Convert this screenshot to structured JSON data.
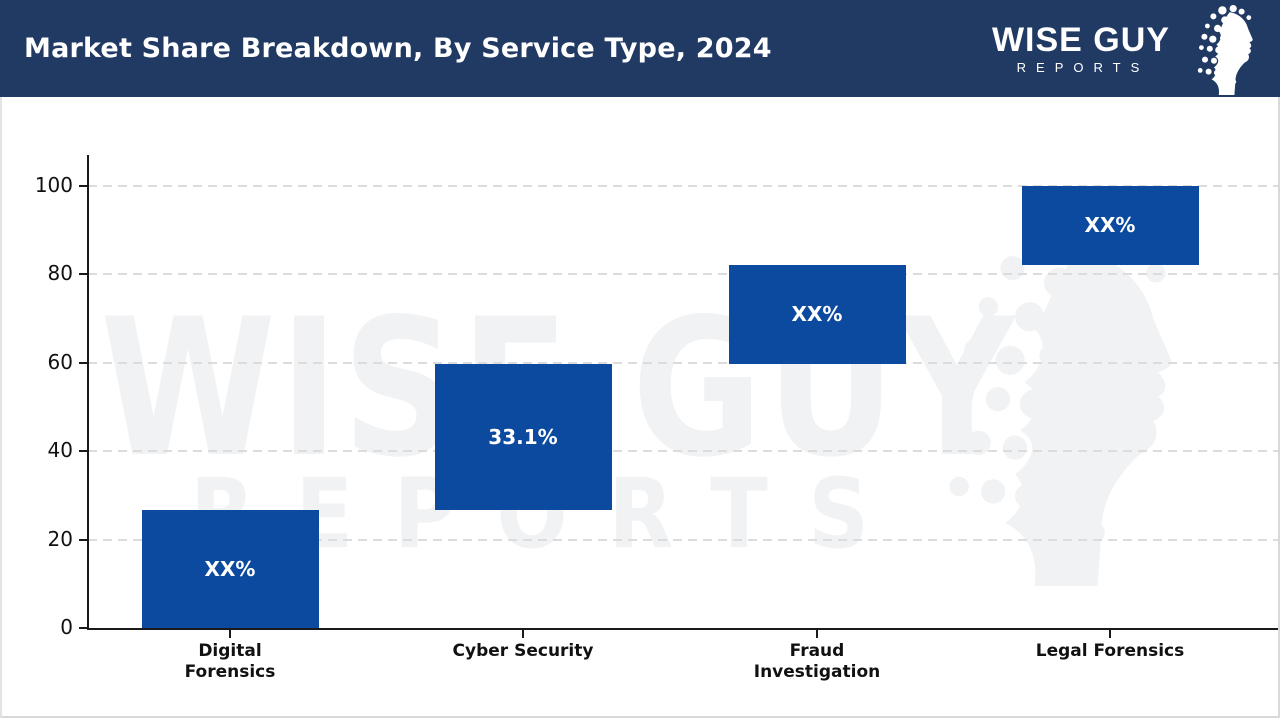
{
  "header": {
    "title": "Market Share Breakdown, By Service Type, 2024",
    "logo": {
      "line1": "WISE GUY",
      "line2": "REPORTS"
    }
  },
  "watermark": {
    "line1": "WISE GUY",
    "line2": "REPORTS"
  },
  "colors": {
    "header_bg": "#213A64",
    "bar": "#0B4A9F",
    "grid": "#DCDCDC",
    "axis": "#1A1A1A",
    "watermark": "#F1F2F4",
    "bar_label": "#FFFFFF"
  },
  "chart_data": {
    "type": "bar",
    "subtype": "waterfall",
    "title": "Market Share Breakdown, By Service Type, 2024",
    "categories": [
      "Digital Forensics",
      "Cyber Security",
      "Fraud Investigation",
      "Legal Forensics"
    ],
    "segments": [
      {
        "category": "Digital Forensics",
        "start": 0,
        "end": 26.7,
        "value": 26.7,
        "label": "XX%"
      },
      {
        "category": "Cyber Security",
        "start": 26.7,
        "end": 59.8,
        "value": 33.1,
        "label": "33.1%"
      },
      {
        "category": "Fraud Investigation",
        "start": 59.8,
        "end": 82.2,
        "value": 22.4,
        "label": "XX%"
      },
      {
        "category": "Legal Forensics",
        "start": 82.2,
        "end": 100,
        "value": 17.8,
        "label": "XX%"
      }
    ],
    "ylim": [
      0,
      107
    ],
    "yticks": [
      0,
      20,
      40,
      60,
      80,
      100
    ],
    "xlabel": "",
    "ylabel": "",
    "grid": "dashed-horizontal",
    "legend": "none"
  }
}
